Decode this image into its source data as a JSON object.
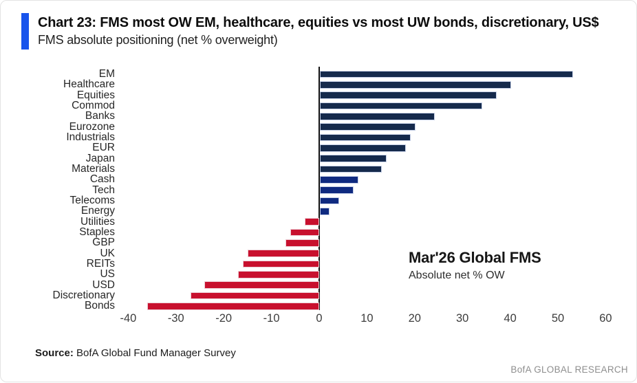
{
  "header": {
    "title": "Chart 23: FMS most OW EM, healthcare, equities vs most UW bonds, discretionary, US$",
    "subtitle": "FMS absolute positioning (net % overweight)",
    "accent_color": "#1854ec"
  },
  "chart_data": {
    "type": "bar",
    "orientation": "horizontal",
    "title": "Chart 23: FMS most OW EM, healthcare, equities vs most UW bonds, discretionary, US$",
    "subtitle": "FMS absolute positioning (net % overweight)",
    "categories": [
      "EM",
      "Healthcare",
      "Equities",
      "Commod",
      "Banks",
      "Eurozone",
      "Industrials",
      "EUR",
      "Japan",
      "Materials",
      "Cash",
      "Tech",
      "Telecoms",
      "Energy",
      "Utilities",
      "Staples",
      "GBP",
      "UK",
      "REITs",
      "US",
      "USD",
      "Discretionary",
      "Bonds"
    ],
    "values": [
      53,
      40,
      37,
      34,
      24,
      20,
      19,
      18,
      14,
      13,
      8,
      7,
      4,
      2,
      -3,
      -6,
      -7,
      -15,
      -16,
      -17,
      -24,
      -27,
      -36
    ],
    "bar_colors": [
      "#152a4c",
      "#152a4c",
      "#152a4c",
      "#152a4c",
      "#152a4c",
      "#152a4c",
      "#152a4c",
      "#152a4c",
      "#152a4c",
      "#152a4c",
      "#0f2a80",
      "#0f2a80",
      "#0f2a80",
      "#0f2a80",
      "#c8102e",
      "#c8102e",
      "#c8102e",
      "#c8102e",
      "#c8102e",
      "#c8102e",
      "#c8102e",
      "#c8102e",
      "#c8102e"
    ],
    "x_ticks": [
      -40,
      -30,
      -20,
      -10,
      0,
      10,
      20,
      30,
      40,
      50,
      60
    ],
    "xlim": [
      -40,
      60
    ],
    "legend": "none",
    "grid": "off",
    "annotation": {
      "line1": "Mar'26 Global FMS",
      "line2": "Absolute net % OW"
    },
    "colors": {
      "positive_navy": "#152a4c",
      "positive_blue": "#0f2a80",
      "negative_red": "#c8102e"
    }
  },
  "footer": {
    "source_label": "Source:",
    "source_text": " BofA Global Fund Manager Survey",
    "brand": "BofA GLOBAL RESEARCH"
  }
}
